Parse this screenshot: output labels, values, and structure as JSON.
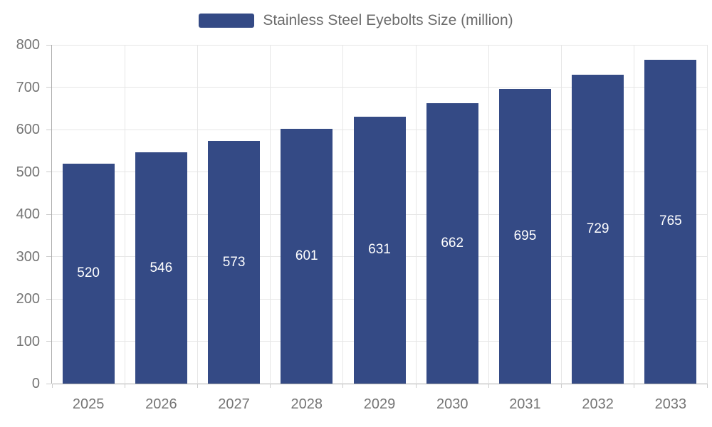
{
  "legend": {
    "label": "Stainless Steel Eyebolts Size (million)"
  },
  "chart_data": {
    "type": "bar",
    "title": "Stainless Steel Eyebolts Size (million)",
    "categories": [
      "2025",
      "2026",
      "2027",
      "2028",
      "2029",
      "2030",
      "2031",
      "2032",
      "2033"
    ],
    "series": [
      {
        "name": "Stainless Steel Eyebolts Size (million)",
        "values": [
          520,
          546,
          573,
          601,
          631,
          662,
          695,
          729,
          765
        ]
      }
    ],
    "value_labels": [
      "520",
      "546",
      "573",
      "601",
      "631",
      "662",
      "695",
      "729",
      "765"
    ],
    "xlabel": "",
    "ylabel": "",
    "ylim": [
      0,
      800
    ],
    "ytick_step": 100,
    "ytick_labels": [
      "0",
      "100",
      "200",
      "300",
      "400",
      "500",
      "600",
      "700",
      "800"
    ],
    "grid": true,
    "legend_position": "top",
    "colors": {
      "bar": "#344a85",
      "value_label": "#ffffff",
      "tick_label": "#757575",
      "legend_text": "#6b6b6b",
      "grid_line": "#e6e6e6",
      "axis_line": "#adadad",
      "tick_mark": "#cccccc",
      "background": "#ffffff"
    }
  }
}
